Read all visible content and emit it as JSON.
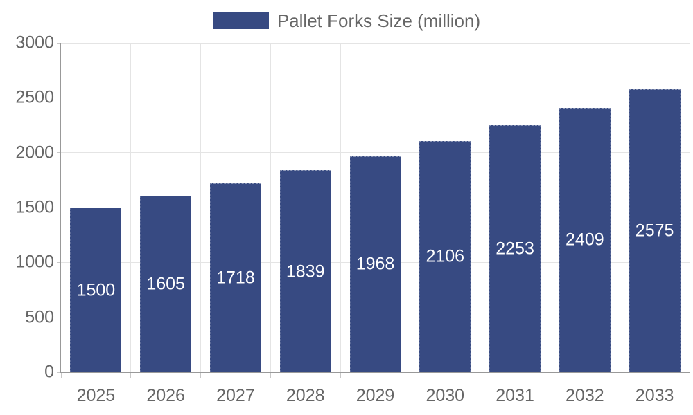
{
  "chart_data": {
    "type": "bar",
    "title": "",
    "legend": "Pallet Forks Size (million)",
    "legend_position": "top-center",
    "categories": [
      "2025",
      "2026",
      "2027",
      "2028",
      "2029",
      "2030",
      "2031",
      "2032",
      "2033"
    ],
    "series": [
      {
        "name": "Pallet Forks Size (million)",
        "values": [
          1500,
          1605,
          1718,
          1839,
          1968,
          2106,
          2253,
          2409,
          2575
        ]
      }
    ],
    "xlabel": "",
    "ylabel": "",
    "ylim": [
      0,
      3000
    ],
    "yticks": [
      0,
      500,
      1000,
      1500,
      2000,
      2500,
      3000
    ],
    "grid": true,
    "bar_label_position": "inside-center",
    "colors": {
      "bar": "#374a82",
      "bar_label": "#ffffff",
      "axis_line": "#999999",
      "tick": "#c8c8c8",
      "grid_line": "#e4e4e4",
      "text": "#666666",
      "background": "#ffffff"
    }
  }
}
